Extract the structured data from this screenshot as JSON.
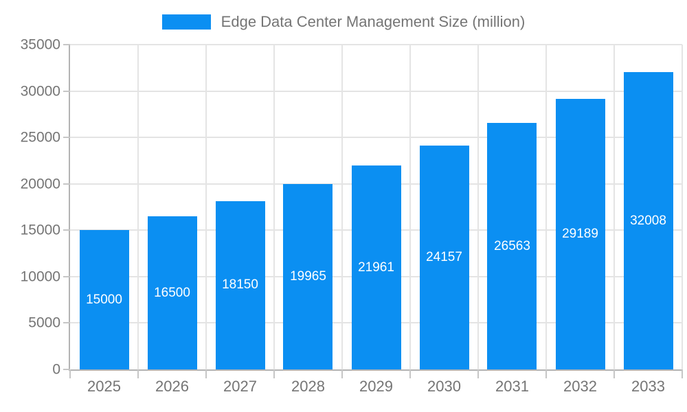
{
  "legend": {
    "label": "Edge Data Center Management Size (million)"
  },
  "colors": {
    "bar": "#0b8ff2",
    "data_label": "#ffffff",
    "text": "#757575",
    "gridline": "#e4e4e4",
    "axis": "#b3b3b3",
    "tick": "#c6c6c6",
    "background": "#ffffff"
  },
  "chart_data": {
    "type": "bar",
    "title": "Edge Data Center Management Size (million)",
    "categories": [
      "2025",
      "2026",
      "2027",
      "2028",
      "2029",
      "2030",
      "2031",
      "2032",
      "2033"
    ],
    "values": [
      15000,
      16500,
      18150,
      19965,
      21961,
      24157,
      26563,
      29189,
      32008
    ],
    "xlabel": "",
    "ylabel": "",
    "ylim": [
      0,
      35000
    ],
    "yticks": [
      0,
      5000,
      10000,
      15000,
      20000,
      25000,
      30000,
      35000
    ],
    "grid": true,
    "legend_position": "top",
    "data_labels": "inside-center",
    "data_label_color": "white"
  }
}
